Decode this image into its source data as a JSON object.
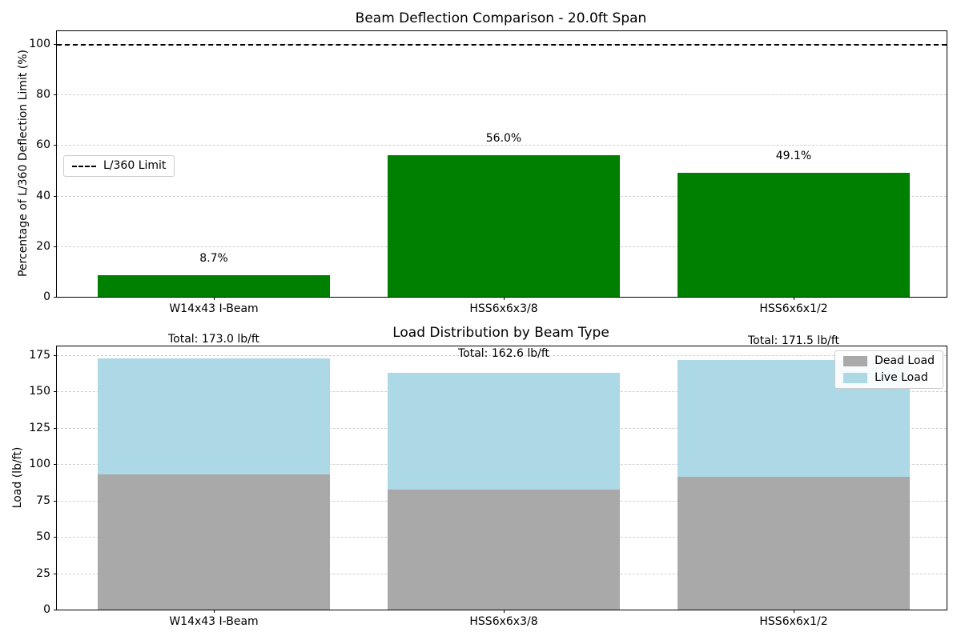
{
  "chart_data": [
    {
      "type": "bar",
      "title": "Beam Deflection Comparison - 20.0ft Span",
      "ylabel": "Percentage of L/360 Deflection Limit (%)",
      "xlabel": "",
      "categories": [
        "W14x43 I-Beam",
        "HSS6x6x3/8",
        "HSS6x6x1/2"
      ],
      "values": [
        8.7,
        56.0,
        49.1
      ],
      "value_labels": [
        "8.7%",
        "56.0%",
        "49.1%"
      ],
      "bar_color": "#008000",
      "ylim": [
        0,
        105
      ],
      "yticks": [
        0,
        20,
        40,
        60,
        80,
        100
      ],
      "grid": "horizontal-dashed",
      "reference_line": {
        "value": 100,
        "label": "L/360 Limit",
        "color": "#000000",
        "style": "dashed"
      },
      "legend": {
        "position": "center-left",
        "entries": [
          {
            "label": "L/360 Limit",
            "swatch": "dashed-line",
            "color": "#000000"
          }
        ]
      }
    },
    {
      "type": "stacked-bar",
      "title": "Load Distribution by Beam Type",
      "ylabel": "Load (lb/ft)",
      "xlabel": "",
      "categories": [
        "W14x43 I-Beam",
        "HSS6x6x3/8",
        "HSS6x6x1/2"
      ],
      "series": [
        {
          "name": "Dead Load",
          "color": "#a9a9a9",
          "values": [
            93.0,
            82.6,
            91.5
          ]
        },
        {
          "name": "Live Load",
          "color": "#add8e6",
          "values": [
            80.0,
            80.0,
            80.0
          ]
        }
      ],
      "totals": [
        173.0,
        162.6,
        171.5
      ],
      "total_labels": [
        "Total: 173.0 lb/ft",
        "Total: 162.6 lb/ft",
        "Total: 171.5 lb/ft"
      ],
      "ylim": [
        0,
        181
      ],
      "yticks": [
        0,
        25,
        50,
        75,
        100,
        125,
        150,
        175
      ],
      "grid": "horizontal-dashed",
      "legend": {
        "position": "upper-right",
        "entries": [
          {
            "label": "Dead Load",
            "swatch": "patch",
            "color": "#a9a9a9"
          },
          {
            "label": "Live Load",
            "swatch": "patch",
            "color": "#add8e6"
          }
        ]
      }
    }
  ]
}
